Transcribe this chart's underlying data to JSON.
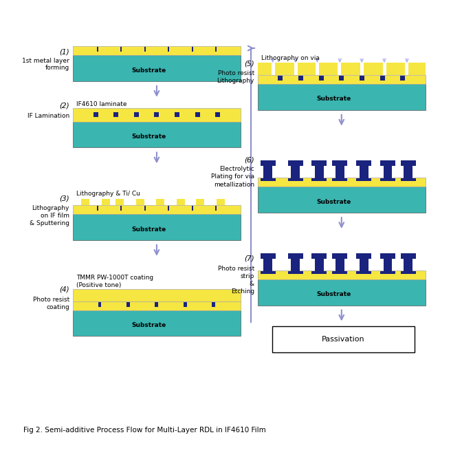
{
  "fig_width": 6.56,
  "fig_height": 6.64,
  "bg_color": "#ffffff",
  "substrate_color": "#3ab5b0",
  "yellow_color": "#f5e642",
  "blue_dark_color": "#1a237e",
  "blue_metal_color": "#2244aa",
  "arrow_color": "#9090cc",
  "text_color": "#000000",
  "caption": "Fig 2. Semi-additive Process Flow for Multi-Layer RDL in IF4610 Film",
  "steps": [
    {
      "num": "(1)",
      "label": "1st metal layer\nforming",
      "type": "basic_metal"
    },
    {
      "num": "(2)",
      "label": "IF Lamination",
      "type": "lamination",
      "sublabel": "IF4610 laminate"
    },
    {
      "num": "(3)",
      "label": "Lithography\non IF film\n& Sputtering",
      "type": "litho_sputter",
      "sublabel": "Lithography & Ti/ Cu"
    },
    {
      "num": "(4)",
      "label": "Photo resist\ncoating",
      "type": "photo_resist",
      "sublabel": "TMMR PW-1000T coating\n(Positive tone)"
    },
    {
      "num": "(5)",
      "label": "Photo resist\nLithography",
      "type": "litho_via",
      "sublabel": "Lithography on via"
    },
    {
      "num": "(6)",
      "label": "Electrolytic\nPlating for via\nmetallization",
      "type": "via_plating"
    },
    {
      "num": "(7)",
      "label": "Photo resist\nstrip\n&\nEtching",
      "type": "strip_etch"
    }
  ]
}
